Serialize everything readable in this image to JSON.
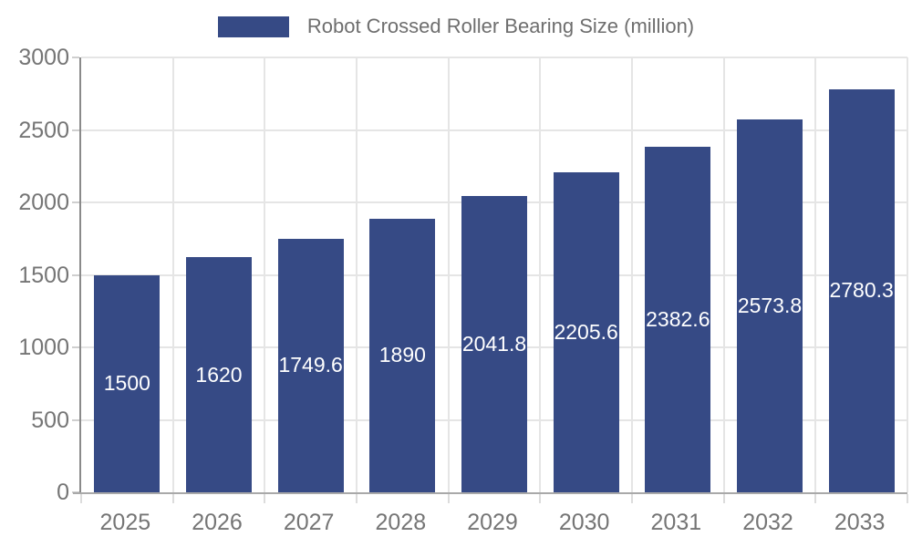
{
  "legend": {
    "items": [
      {
        "label": "Robot Crossed Roller Bearing Size (million)",
        "color": "#364a85"
      }
    ],
    "position": "top-center"
  },
  "chart_data": {
    "type": "bar",
    "title": "Robot Crossed Roller Bearing Size (million)",
    "categories": [
      "2025",
      "2026",
      "2027",
      "2028",
      "2029",
      "2030",
      "2031",
      "2032",
      "2033"
    ],
    "series": [
      {
        "name": "Robot Crossed Roller Bearing Size (million)",
        "color": "#364a85",
        "values": [
          1500,
          1620,
          1749.6,
          1890,
          2041.8,
          2205.6,
          2382.6,
          2573.8,
          2780.3
        ]
      }
    ],
    "value_labels": [
      "1500",
      "1620",
      "1749.6",
      "1890",
      "2041.8",
      "2205.6",
      "2382.6",
      "2573.8",
      "2780.3"
    ],
    "value_label_color": "#ffffff",
    "xlabel": "",
    "ylabel": "",
    "ylim": [
      0,
      3000
    ],
    "yticks": [
      0,
      500,
      1000,
      1500,
      2000,
      2500,
      3000
    ],
    "ytick_labels": [
      "0",
      "500",
      "1000",
      "1500",
      "2000",
      "2500",
      "3000"
    ],
    "grid": true,
    "legend_position": "top",
    "colors": {
      "bar": "#364a85",
      "gridline": "#e5e5e5",
      "y_axis_line": "#8a8a8a",
      "x_axis_line": "#a9a9a9",
      "tick_label": "#757575",
      "legend_text": "#6e6e6e",
      "background": "#ffffff"
    }
  }
}
